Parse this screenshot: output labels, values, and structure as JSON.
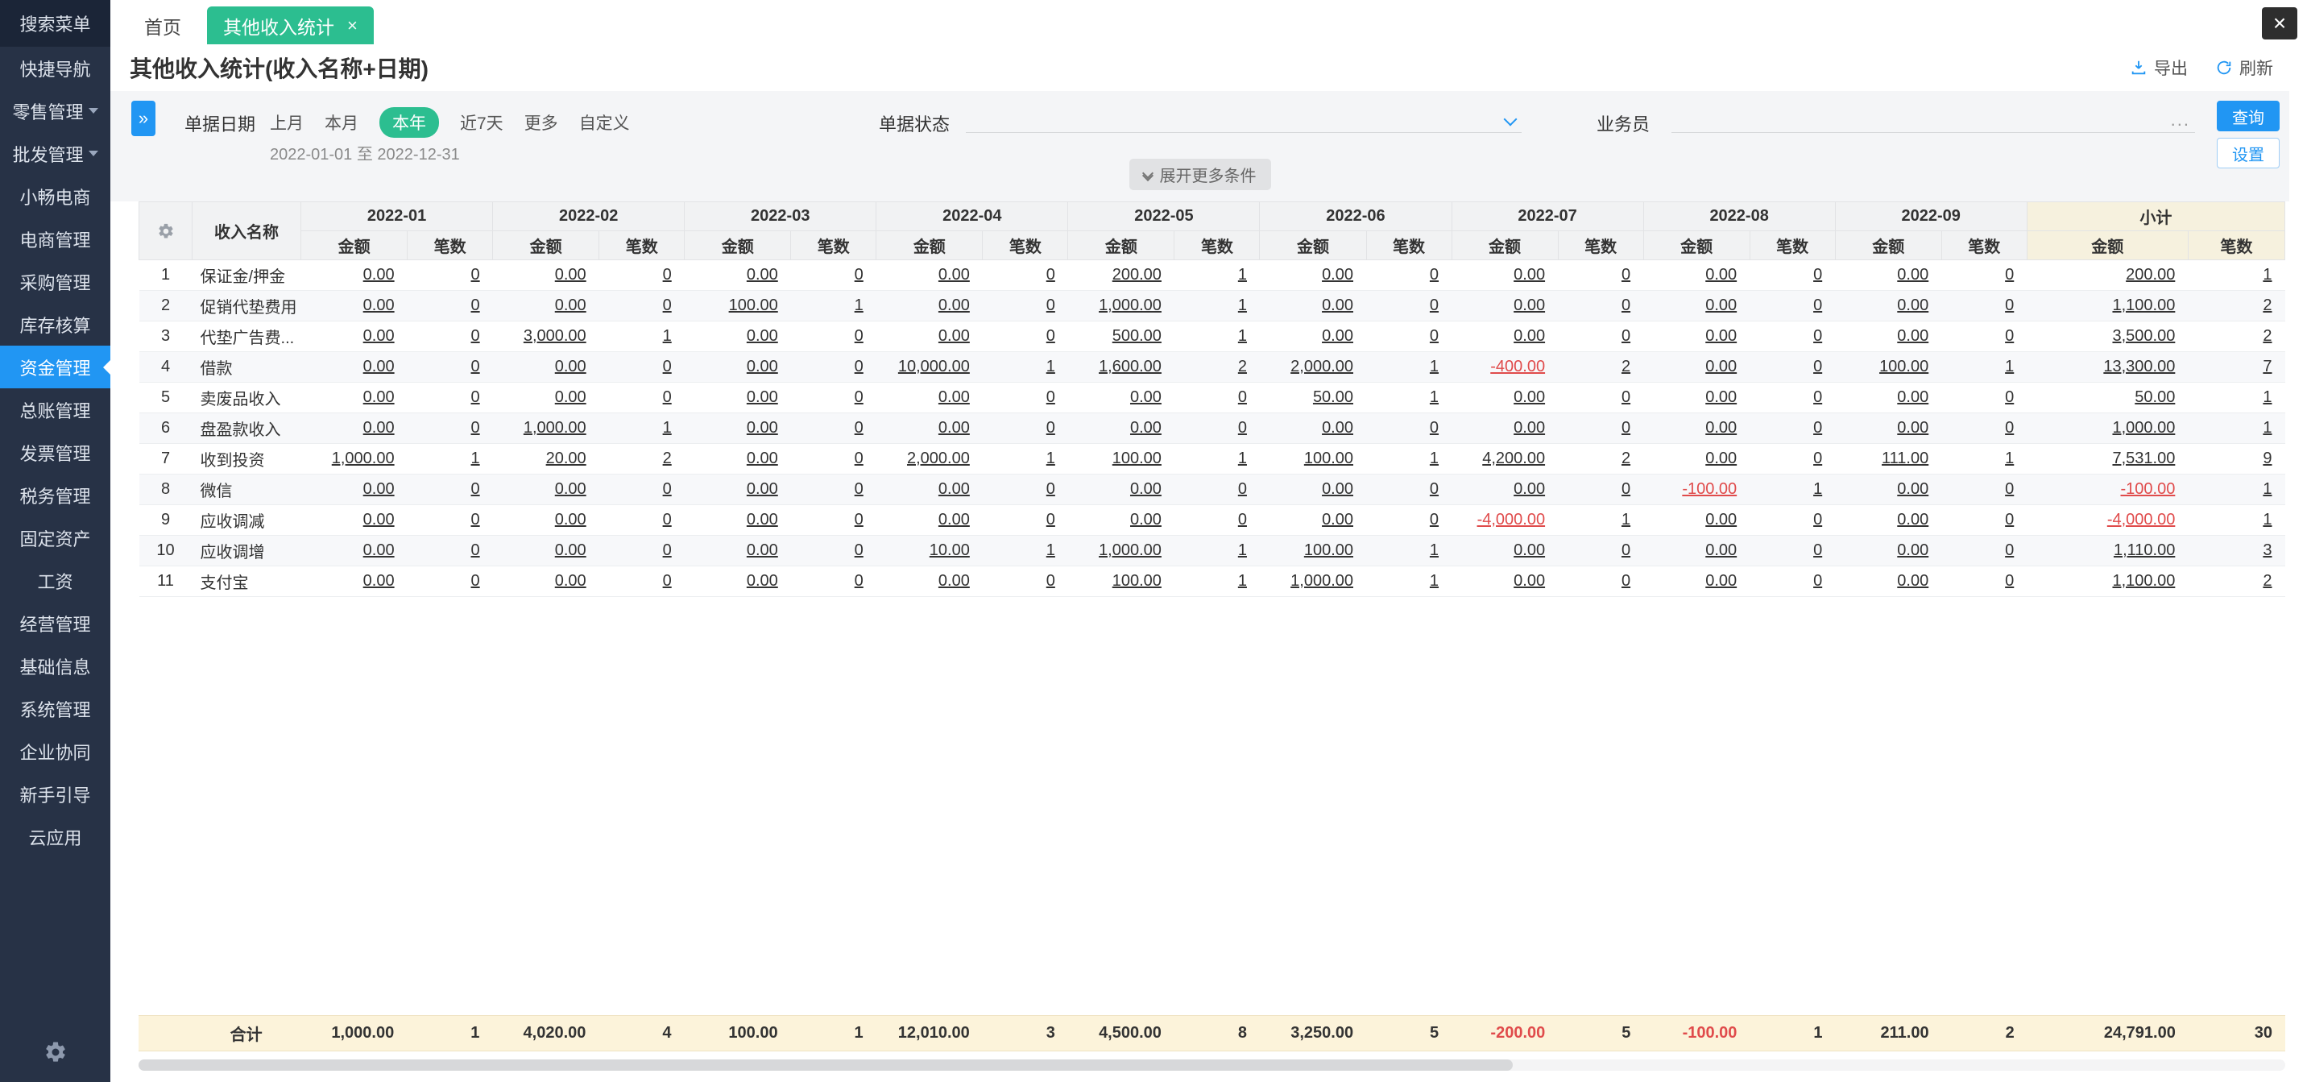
{
  "window": {
    "close_glyph": "×"
  },
  "sidebar": {
    "items": [
      {
        "label": "搜索菜单",
        "type": "search"
      },
      {
        "label": "快捷导航"
      },
      {
        "label": "零售管理",
        "expandable": true
      },
      {
        "label": "批发管理",
        "expandable": true
      },
      {
        "label": "小畅电商"
      },
      {
        "label": "电商管理"
      },
      {
        "label": "采购管理"
      },
      {
        "label": "库存核算"
      },
      {
        "label": "资金管理",
        "active": true
      },
      {
        "label": "总账管理"
      },
      {
        "label": "发票管理"
      },
      {
        "label": "税务管理"
      },
      {
        "label": "固定资产"
      },
      {
        "label": "工资"
      },
      {
        "label": "经营管理"
      },
      {
        "label": "基础信息"
      },
      {
        "label": "系统管理"
      },
      {
        "label": "企业协同"
      },
      {
        "label": "新手引导"
      },
      {
        "label": "云应用"
      }
    ]
  },
  "tabs": [
    {
      "label": "首页",
      "active": false
    },
    {
      "label": "其他收入统计",
      "active": true,
      "close_glyph": "×"
    }
  ],
  "page": {
    "title": "其他收入统计(收入名称+日期)",
    "export_label": "导出",
    "refresh_label": "刷新"
  },
  "filters": {
    "collapse_glyph": "»",
    "date_label": "单据日期",
    "date_options": [
      "上月",
      "本月",
      "本年",
      "近7天",
      "更多",
      "自定义"
    ],
    "date_active": "本年",
    "date_range": "2022-01-01 至 2022-12-31",
    "status_label": "单据状态",
    "salesman_label": "业务员",
    "salesman_more": "...",
    "search_button": "查询",
    "settings_button": "设置",
    "expand_more": "展开更多条件"
  },
  "table": {
    "name_header": "收入名称",
    "amount_header": "金额",
    "count_header": "笔数",
    "subtotal_header": "小计",
    "months": [
      "2022-01",
      "2022-02",
      "2022-03",
      "2022-04",
      "2022-05",
      "2022-06",
      "2022-07",
      "2022-08",
      "2022-09"
    ],
    "rows": [
      {
        "no": 1,
        "name": "保证金/押金",
        "cells": [
          [
            "0.00",
            0
          ],
          [
            "0.00",
            0
          ],
          [
            "0.00",
            0
          ],
          [
            "0.00",
            0
          ],
          [
            "200.00",
            1
          ],
          [
            "0.00",
            0
          ],
          [
            "0.00",
            0
          ],
          [
            "0.00",
            0
          ],
          [
            "0.00",
            0
          ]
        ],
        "subtotal": [
          "200.00",
          1
        ]
      },
      {
        "no": 2,
        "name": "促销代垫费用",
        "cells": [
          [
            "0.00",
            0
          ],
          [
            "0.00",
            0
          ],
          [
            "100.00",
            1
          ],
          [
            "0.00",
            0
          ],
          [
            "1,000.00",
            1
          ],
          [
            "0.00",
            0
          ],
          [
            "0.00",
            0
          ],
          [
            "0.00",
            0
          ],
          [
            "0.00",
            0
          ]
        ],
        "subtotal": [
          "1,100.00",
          2
        ]
      },
      {
        "no": 3,
        "name": "代垫广告费...",
        "cells": [
          [
            "0.00",
            0
          ],
          [
            "3,000.00",
            1
          ],
          [
            "0.00",
            0
          ],
          [
            "0.00",
            0
          ],
          [
            "500.00",
            1
          ],
          [
            "0.00",
            0
          ],
          [
            "0.00",
            0
          ],
          [
            "0.00",
            0
          ],
          [
            "0.00",
            0
          ]
        ],
        "subtotal": [
          "3,500.00",
          2
        ]
      },
      {
        "no": 4,
        "name": "借款",
        "cells": [
          [
            "0.00",
            0
          ],
          [
            "0.00",
            0
          ],
          [
            "0.00",
            0
          ],
          [
            "10,000.00",
            1
          ],
          [
            "1,600.00",
            2
          ],
          [
            "2,000.00",
            1
          ],
          [
            "-400.00",
            2
          ],
          [
            "0.00",
            0
          ],
          [
            "100.00",
            1
          ]
        ],
        "subtotal": [
          "13,300.00",
          7
        ]
      },
      {
        "no": 5,
        "name": "卖废品收入",
        "cells": [
          [
            "0.00",
            0
          ],
          [
            "0.00",
            0
          ],
          [
            "0.00",
            0
          ],
          [
            "0.00",
            0
          ],
          [
            "0.00",
            0
          ],
          [
            "50.00",
            1
          ],
          [
            "0.00",
            0
          ],
          [
            "0.00",
            0
          ],
          [
            "0.00",
            0
          ]
        ],
        "subtotal": [
          "50.00",
          1
        ]
      },
      {
        "no": 6,
        "name": "盘盈款收入",
        "cells": [
          [
            "0.00",
            0
          ],
          [
            "1,000.00",
            1
          ],
          [
            "0.00",
            0
          ],
          [
            "0.00",
            0
          ],
          [
            "0.00",
            0
          ],
          [
            "0.00",
            0
          ],
          [
            "0.00",
            0
          ],
          [
            "0.00",
            0
          ],
          [
            "0.00",
            0
          ]
        ],
        "subtotal": [
          "1,000.00",
          1
        ]
      },
      {
        "no": 7,
        "name": "收到投资",
        "cells": [
          [
            "1,000.00",
            1
          ],
          [
            "20.00",
            2
          ],
          [
            "0.00",
            0
          ],
          [
            "2,000.00",
            1
          ],
          [
            "100.00",
            1
          ],
          [
            "100.00",
            1
          ],
          [
            "4,200.00",
            2
          ],
          [
            "0.00",
            0
          ],
          [
            "111.00",
            1
          ]
        ],
        "subtotal": [
          "7,531.00",
          9
        ]
      },
      {
        "no": 8,
        "name": "微信",
        "cells": [
          [
            "0.00",
            0
          ],
          [
            "0.00",
            0
          ],
          [
            "0.00",
            0
          ],
          [
            "0.00",
            0
          ],
          [
            "0.00",
            0
          ],
          [
            "0.00",
            0
          ],
          [
            "0.00",
            0
          ],
          [
            "-100.00",
            1
          ],
          [
            "0.00",
            0
          ]
        ],
        "subtotal": [
          "-100.00",
          1
        ]
      },
      {
        "no": 9,
        "name": "应收调减",
        "cells": [
          [
            "0.00",
            0
          ],
          [
            "0.00",
            0
          ],
          [
            "0.00",
            0
          ],
          [
            "0.00",
            0
          ],
          [
            "0.00",
            0
          ],
          [
            "0.00",
            0
          ],
          [
            "-4,000.00",
            1
          ],
          [
            "0.00",
            0
          ],
          [
            "0.00",
            0
          ]
        ],
        "subtotal": [
          "-4,000.00",
          1
        ]
      },
      {
        "no": 10,
        "name": "应收调增",
        "cells": [
          [
            "0.00",
            0
          ],
          [
            "0.00",
            0
          ],
          [
            "0.00",
            0
          ],
          [
            "10.00",
            1
          ],
          [
            "1,000.00",
            1
          ],
          [
            "100.00",
            1
          ],
          [
            "0.00",
            0
          ],
          [
            "0.00",
            0
          ],
          [
            "0.00",
            0
          ]
        ],
        "subtotal": [
          "1,110.00",
          3
        ]
      },
      {
        "no": 11,
        "name": "支付宝",
        "cells": [
          [
            "0.00",
            0
          ],
          [
            "0.00",
            0
          ],
          [
            "0.00",
            0
          ],
          [
            "0.00",
            0
          ],
          [
            "100.00",
            1
          ],
          [
            "1,000.00",
            1
          ],
          [
            "0.00",
            0
          ],
          [
            "0.00",
            0
          ],
          [
            "0.00",
            0
          ]
        ],
        "subtotal": [
          "1,100.00",
          2
        ]
      }
    ],
    "footer": {
      "label": "合计",
      "cells": [
        [
          "1,000.00",
          1
        ],
        [
          "4,020.00",
          4
        ],
        [
          "100.00",
          1
        ],
        [
          "12,010.00",
          3
        ],
        [
          "4,500.00",
          8
        ],
        [
          "3,250.00",
          5
        ],
        [
          "-200.00",
          5
        ],
        [
          "-100.00",
          1
        ],
        [
          "211.00",
          2
        ]
      ],
      "subtotal": [
        "24,791.00",
        30
      ]
    }
  }
}
